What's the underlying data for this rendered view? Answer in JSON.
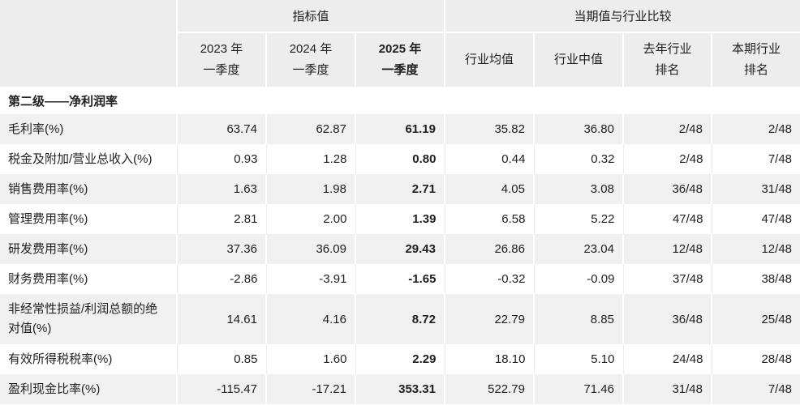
{
  "chart_data": {
    "type": "table",
    "section_title": "第二级——净利润率",
    "column_groups": {
      "indicator_values": {
        "label": "指标值",
        "span": 3
      },
      "industry_comparison": {
        "label": "当期值与行业比较",
        "span": 4
      }
    },
    "columns": [
      {
        "line1": "2023 年",
        "line2": "一季度",
        "bold": false
      },
      {
        "line1": "2024 年",
        "line2": "一季度",
        "bold": false
      },
      {
        "line1": "2025 年",
        "line2": "一季度",
        "bold": true
      },
      {
        "line1": "行业均值",
        "line2": "",
        "bold": false
      },
      {
        "line1": "行业中值",
        "line2": "",
        "bold": false
      },
      {
        "line1": "去年行业",
        "line2": "排名",
        "bold": false
      },
      {
        "line1": "本期行业",
        "line2": "排名",
        "bold": false
      }
    ],
    "rows": [
      {
        "label": "毛利率(%)",
        "values": [
          "63.74",
          "62.87",
          "61.19",
          "35.82",
          "36.80",
          "2/48",
          "2/48"
        ]
      },
      {
        "label": "税金及附加/营业总收入(%)",
        "values": [
          "0.93",
          "1.28",
          "0.80",
          "0.44",
          "0.32",
          "2/48",
          "7/48"
        ]
      },
      {
        "label": "销售费用率(%)",
        "values": [
          "1.63",
          "1.98",
          "2.71",
          "4.05",
          "3.08",
          "36/48",
          "31/48"
        ]
      },
      {
        "label": "管理费用率(%)",
        "values": [
          "2.81",
          "2.00",
          "1.39",
          "6.58",
          "5.22",
          "47/48",
          "47/48"
        ]
      },
      {
        "label": "研发费用率(%)",
        "values": [
          "37.36",
          "36.09",
          "29.43",
          "26.86",
          "23.04",
          "12/48",
          "12/48"
        ]
      },
      {
        "label": "财务费用率(%)",
        "values": [
          "-2.86",
          "-3.91",
          "-1.65",
          "-0.32",
          "-0.09",
          "37/48",
          "38/48"
        ]
      },
      {
        "label": "非经常性损益/利润总额的绝对值(%)",
        "values": [
          "14.61",
          "4.16",
          "8.72",
          "22.79",
          "8.85",
          "36/48",
          "25/48"
        ]
      },
      {
        "label": "有效所得税税率(%)",
        "values": [
          "0.85",
          "1.60",
          "2.29",
          "18.10",
          "5.10",
          "24/48",
          "28/48"
        ]
      },
      {
        "label": "盈利现金比率(%)",
        "values": [
          "-115.47",
          "-17.21",
          "353.31",
          "522.79",
          "71.46",
          "31/48",
          "7/48"
        ]
      }
    ],
    "highlight_column": "2025 年一季度",
    "colors": {
      "header_bg": "#ededed",
      "stripe_bg": "#f0f0f0",
      "divider_white": "#ffffff",
      "divider_gray": "#ececec",
      "text": "#1f1f1f"
    },
    "layout_hints": {
      "label_col_align": "left",
      "value_cols_align": "right",
      "grid": "striped-rows"
    }
  }
}
